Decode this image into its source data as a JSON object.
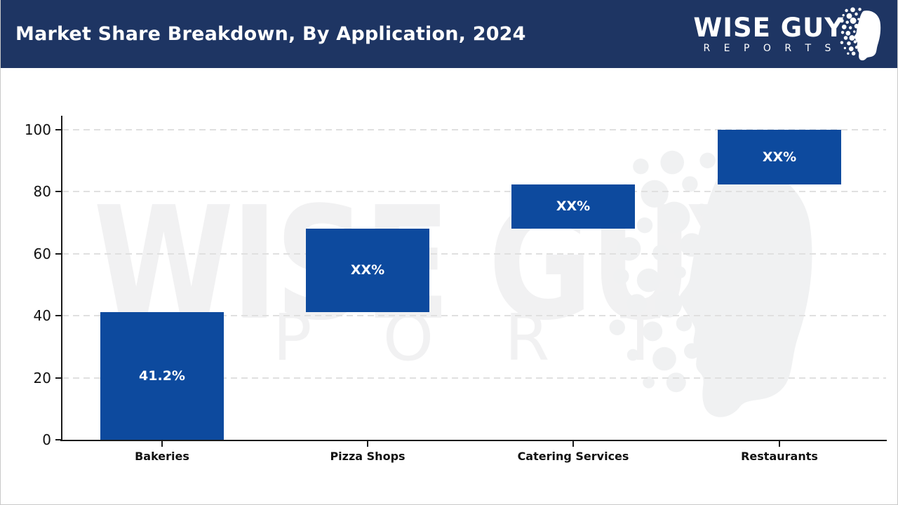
{
  "header": {
    "title": "Market Share Breakdown, By Application, 2024",
    "logo": {
      "primary": "WISE GUY",
      "secondary": "R E P O R T S"
    }
  },
  "watermark": {
    "primary": "WISE GUY",
    "secondary": "P O R T S"
  },
  "colors": {
    "header_bg": "#1e3563",
    "bar": "#0d4a9e",
    "bar_label": "#ffffff",
    "watermark": "#f1f1f2",
    "axis": "#1a1a1a",
    "grid": "#e0e0e0"
  },
  "chart_data": {
    "type": "bar",
    "variant": "waterfall",
    "title": "Market Share Breakdown, By Application, 2024",
    "categories": [
      "Bakeries",
      "Pizza Shops",
      "Catering Services",
      "Restaurants"
    ],
    "segments": [
      {
        "category": "Bakeries",
        "start": 0,
        "end": 41.2,
        "label": "41.2%"
      },
      {
        "category": "Pizza Shops",
        "start": 41.2,
        "end": 68.1,
        "label": "XX%"
      },
      {
        "category": "Catering Services",
        "start": 68.1,
        "end": 82.4,
        "label": "XX%"
      },
      {
        "category": "Restaurants",
        "start": 82.4,
        "end": 100,
        "label": "XX%"
      }
    ],
    "y_ticks": [
      0,
      20,
      40,
      60,
      80,
      100
    ],
    "ylim": [
      0,
      105
    ],
    "xlabel": "",
    "ylabel": "",
    "grid": "horizontal-dashed",
    "legend": "none",
    "bar_color": "#0d4a9e",
    "label_color": "#ffffff"
  }
}
